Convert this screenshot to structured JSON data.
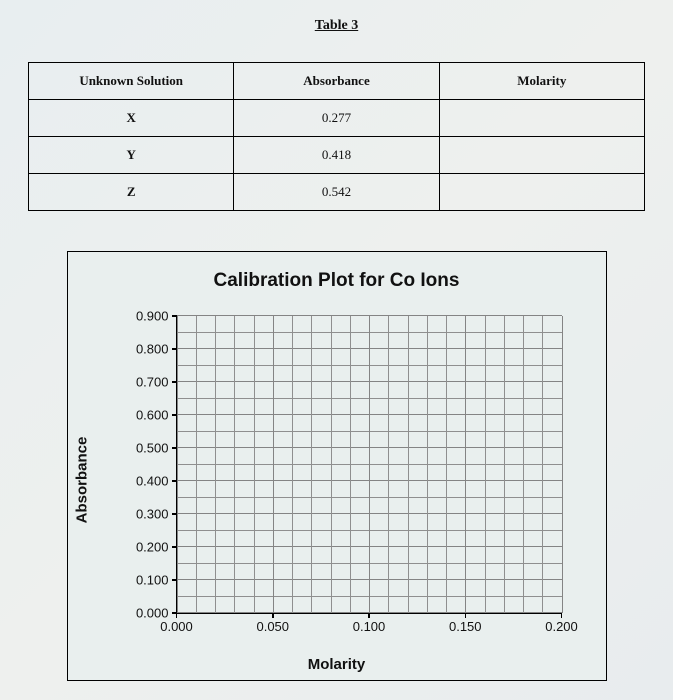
{
  "title": "Table 3",
  "table": {
    "columns": [
      "Unknown Solution",
      "Absorbance",
      "Molarity"
    ],
    "rows": [
      {
        "solution": "X",
        "absorbance": "0.277",
        "molarity": ""
      },
      {
        "solution": "Y",
        "absorbance": "0.418",
        "molarity": ""
      },
      {
        "solution": "Z",
        "absorbance": "0.542",
        "molarity": ""
      }
    ],
    "border_color": "#000000",
    "header_fontweight": "bold"
  },
  "chart": {
    "type": "scatter",
    "title": "Calibration Plot for Co Ions",
    "title_fontsize": 19,
    "label_fontsize": 15,
    "tick_fontsize": 13,
    "xlabel": "Molarity",
    "ylabel": "Absorbance",
    "xlim": [
      0.0,
      0.2
    ],
    "ylim": [
      0.0,
      0.9
    ],
    "x_major_ticks": [
      "0.000",
      "0.050",
      "0.100",
      "0.150",
      "0.200"
    ],
    "y_major_ticks": [
      "0.000",
      "0.100",
      "0.200",
      "0.300",
      "0.400",
      "0.500",
      "0.600",
      "0.700",
      "0.800",
      "0.900"
    ],
    "x_minor_div_per_major": 5,
    "y_minor_div_per_major": 2,
    "grid_color": "#8f8f8f",
    "axis_color": "#000000",
    "panel_border_color": "#000000",
    "panel_background": "#e9efee",
    "series": []
  }
}
